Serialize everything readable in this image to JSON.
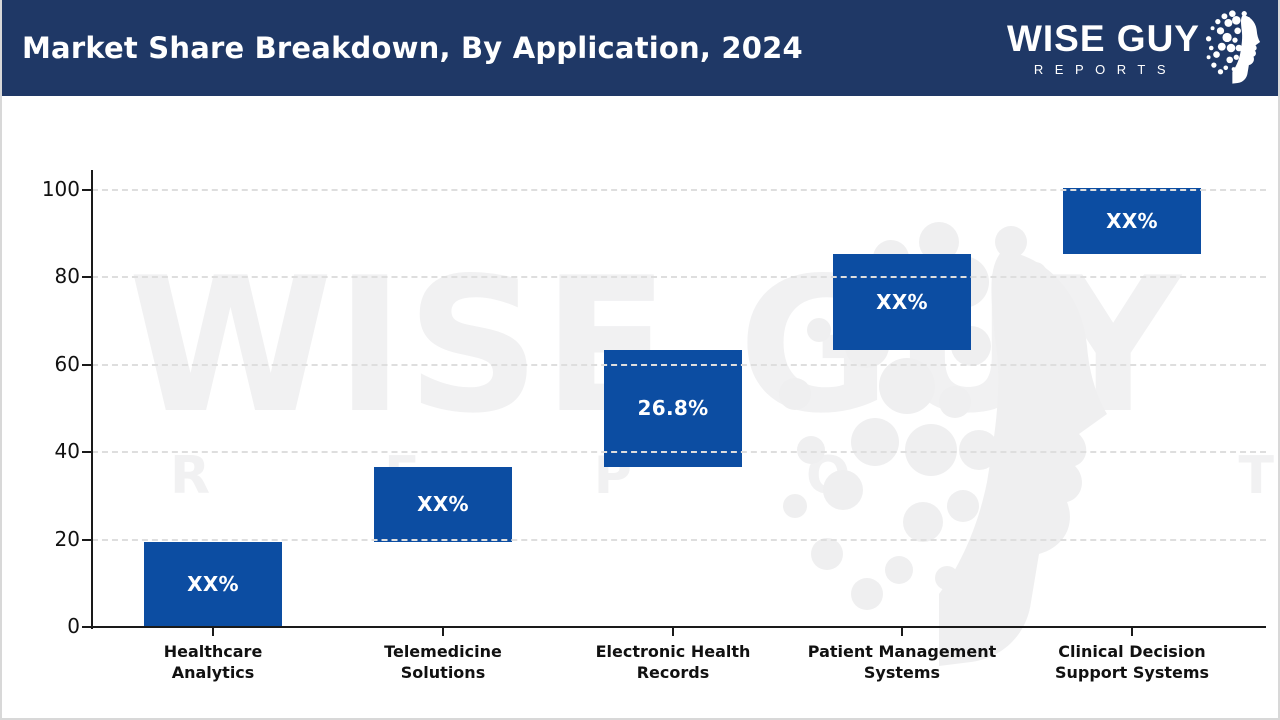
{
  "header": {
    "title": "Market Share Breakdown, By Application, 2024",
    "logo": {
      "name": "WISE GUY",
      "sub": "REPORTS"
    }
  },
  "watermark": {
    "line1": "WISE GUY",
    "line2": "R E P O R T S"
  },
  "chart_data": {
    "type": "bar",
    "variant": "floating-waterfall",
    "title": "Market Share Breakdown, By Application, 2024",
    "xlabel": "",
    "ylabel": "",
    "ylim": [
      0,
      105
    ],
    "yticks": [
      0,
      20,
      40,
      60,
      80,
      100
    ],
    "grid": "horizontal-dashed",
    "legend": "none",
    "bar_color": "#0c4da2",
    "value_label_color": "#ffffff",
    "categories": [
      "Healthcare Analytics",
      "Telemedicine Solutions",
      "Electronic Health Records",
      "Patient Management Systems",
      "Clinical Decision Support Systems"
    ],
    "category_lines": [
      [
        "Healthcare",
        "Analytics"
      ],
      [
        "Telemedicine",
        "Solutions"
      ],
      [
        "Electronic Health",
        "Records"
      ],
      [
        "Patient Management",
        "Systems"
      ],
      [
        "Clinical Decision",
        "Support Systems"
      ]
    ],
    "segments": [
      {
        "category": "Healthcare Analytics",
        "start": 0,
        "end": 19.5,
        "label": "XX%"
      },
      {
        "category": "Telemedicine Solutions",
        "start": 19.5,
        "end": 36.6,
        "label": "XX%"
      },
      {
        "category": "Electronic Health Records",
        "start": 36.6,
        "end": 63.4,
        "label": "26.8%"
      },
      {
        "category": "Patient Management Systems",
        "start": 63.4,
        "end": 85.2,
        "label": "XX%"
      },
      {
        "category": "Clinical Decision Support Systems",
        "start": 85.2,
        "end": 100.3,
        "label": "XX%"
      }
    ]
  }
}
